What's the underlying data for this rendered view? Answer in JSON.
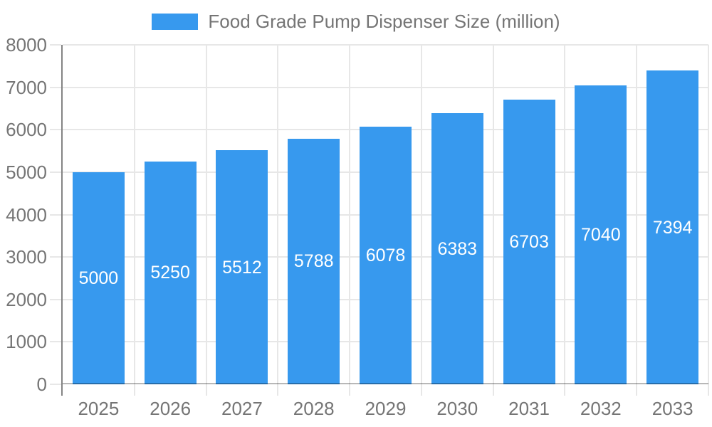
{
  "chart_data": {
    "type": "bar",
    "title": "Food Grade Pump Dispenser Size (million)",
    "categories": [
      "2025",
      "2026",
      "2027",
      "2028",
      "2029",
      "2030",
      "2031",
      "2032",
      "2033"
    ],
    "values": [
      5000,
      5250,
      5512,
      5788,
      6078,
      6383,
      6703,
      7040,
      7394
    ],
    "xlabel": "",
    "ylabel": "",
    "ylim": [
      0,
      8000
    ],
    "ytick_step": 1000,
    "ytick_labels": [
      "0",
      "1000",
      "2000",
      "3000",
      "4000",
      "5000",
      "6000",
      "7000",
      "8000"
    ],
    "grid": "on",
    "legend_position": "top",
    "value_labels": "inside-center",
    "colors": {
      "bar": "#3799ee",
      "label": "#757575",
      "grid": "#e7e7e7",
      "y_axis_line": "#848484",
      "x_axis_line": "rgba(0,0,0,0.28)",
      "value_label": "#ffffff",
      "background": "#ffffff"
    }
  }
}
